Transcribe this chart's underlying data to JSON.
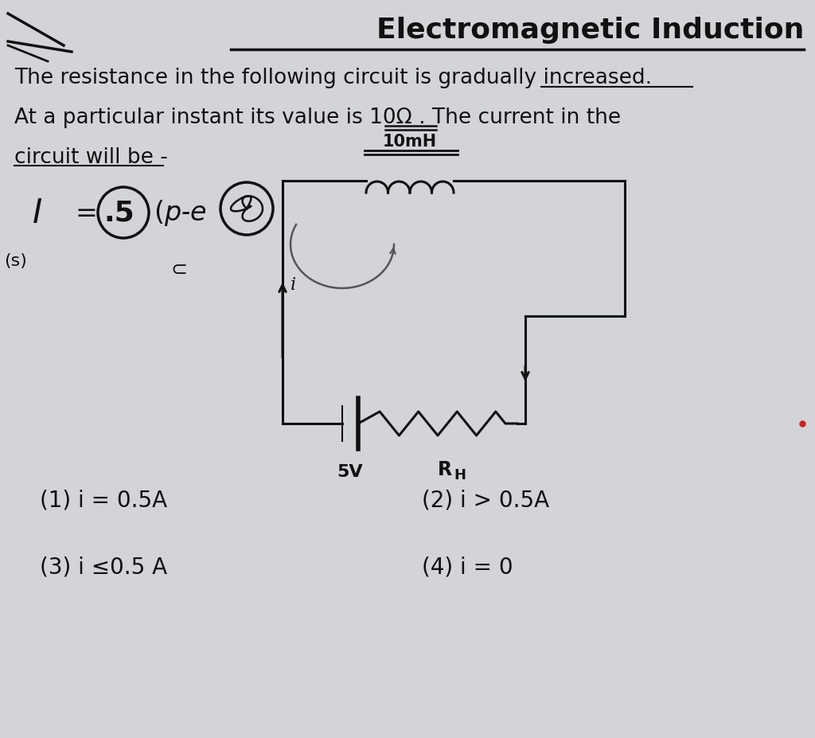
{
  "title": "Electromagnetic Induction",
  "title_fontsize": 26,
  "title_fontweight": "bold",
  "bg_color": "#c8cace",
  "text_color": "#111111",
  "body_text_line1": "The resistance in the following circuit is gradually increased.",
  "body_text_line2": "At a particular instant its value is 10Ω . The current in the",
  "body_text_line3": "circuit will be -",
  "inductor_label": "10mH",
  "battery_label": "5V",
  "resistor_label": "R",
  "resistor_sublabel": "H",
  "options": [
    "(1) i = 0.5A",
    "(2) i > 0.5A",
    "(3) i ≤0.5 A",
    "(4) i = 0"
  ],
  "options_fontsize": 20,
  "body_fontsize": 19,
  "circuit_line_color": "#111111",
  "circuit_bg": "#e8e8ea"
}
